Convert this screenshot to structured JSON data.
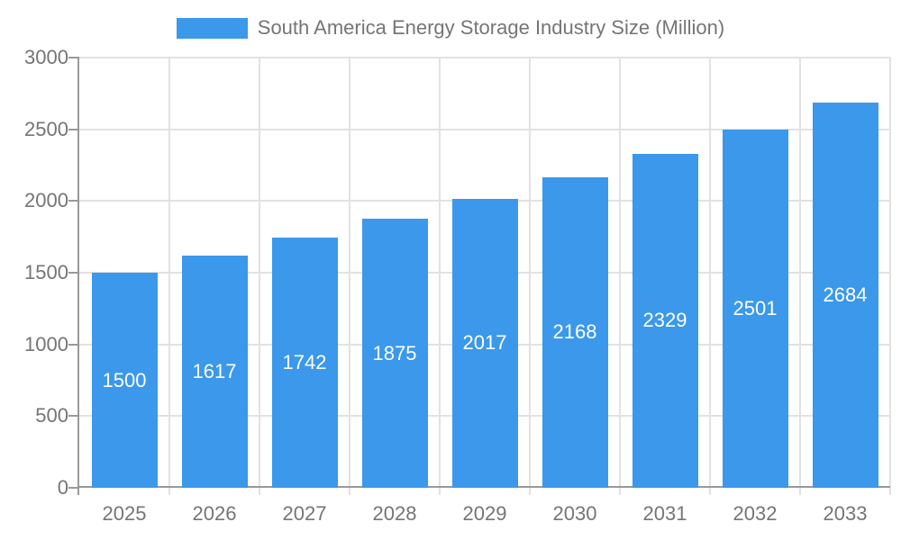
{
  "chart_data": {
    "type": "bar",
    "title": "South America Energy Storage Industry Size (Million)",
    "categories": [
      "2025",
      "2026",
      "2027",
      "2028",
      "2029",
      "2030",
      "2031",
      "2032",
      "2033"
    ],
    "values": [
      1500,
      1617,
      1742,
      1875,
      2017,
      2168,
      2329,
      2501,
      2684
    ],
    "series": [
      {
        "name": "South America Energy Storage Industry Size (Million)",
        "values": [
          1500,
          1617,
          1742,
          1875,
          2017,
          2168,
          2329,
          2501,
          2684
        ]
      }
    ],
    "xlabel": "",
    "ylabel": "",
    "ylim": [
      0,
      3000
    ],
    "yticks": [
      0,
      500,
      1000,
      1500,
      2000,
      2500,
      3000
    ],
    "grid": true,
    "legend_position": "top-center",
    "bar_labels_visible": true,
    "colors": {
      "bar": "#3b98eb",
      "bar_label": "#ffffff",
      "axis": "#999999",
      "grid": "#e2e2e2",
      "tick_label": "#757575",
      "title": "#757575",
      "background": "#ffffff"
    }
  }
}
